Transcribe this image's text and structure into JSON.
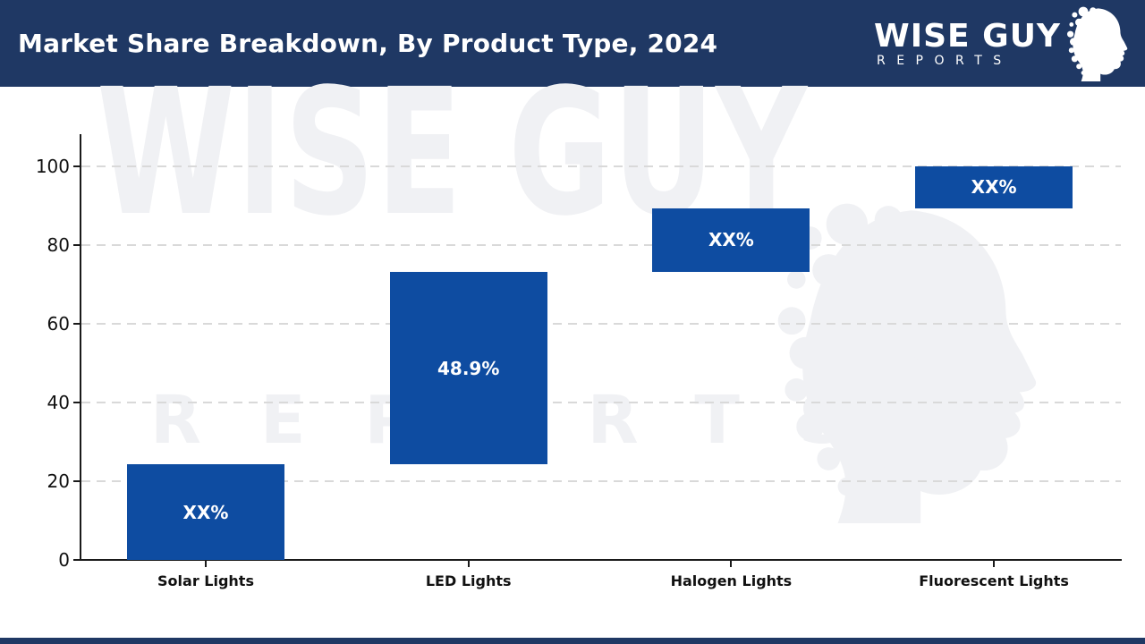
{
  "header": {
    "title": "Market Share Breakdown, By Product Type, 2024",
    "logo_line1": "WISE GUY",
    "logo_line2": "REPORTS"
  },
  "watermark": {
    "line1": "WISE GUY",
    "line2": "REPORTS"
  },
  "colors": {
    "header_bg": "#1F3864",
    "footer_bg": "#1F3864",
    "bar": "#0E4CA1",
    "bar_label": "#FFFFFF",
    "watermark": "#F0F1F4",
    "gridline": "#D9D9D9",
    "axis": "#1A1A1A",
    "tick_text": "#111111"
  },
  "chart_data": {
    "type": "bar",
    "subtype": "waterfall",
    "title": "Market Share Breakdown, By Product Type, 2024",
    "xlabel": "",
    "ylabel": "",
    "categories": [
      "Solar Lights",
      "LED Lights",
      "Halogen Lights",
      "Fluorescent Lights"
    ],
    "bars": [
      {
        "category": "Solar Lights",
        "start": 0,
        "end": 24.3,
        "value": 24.3,
        "label": "XX%"
      },
      {
        "category": "LED Lights",
        "start": 24.3,
        "end": 73.2,
        "value": 48.9,
        "label": "48.9%"
      },
      {
        "category": "Halogen Lights",
        "start": 73.2,
        "end": 89.4,
        "value": 16.2,
        "label": "XX%"
      },
      {
        "category": "Fluorescent Lights",
        "start": 89.4,
        "end": 100,
        "value": 10.6,
        "label": "XX%"
      }
    ],
    "yticks": [
      0,
      20,
      40,
      60,
      80,
      100
    ],
    "ylim": [
      0,
      107
    ],
    "grid": "horizontal-dashed",
    "legend": "none"
  }
}
